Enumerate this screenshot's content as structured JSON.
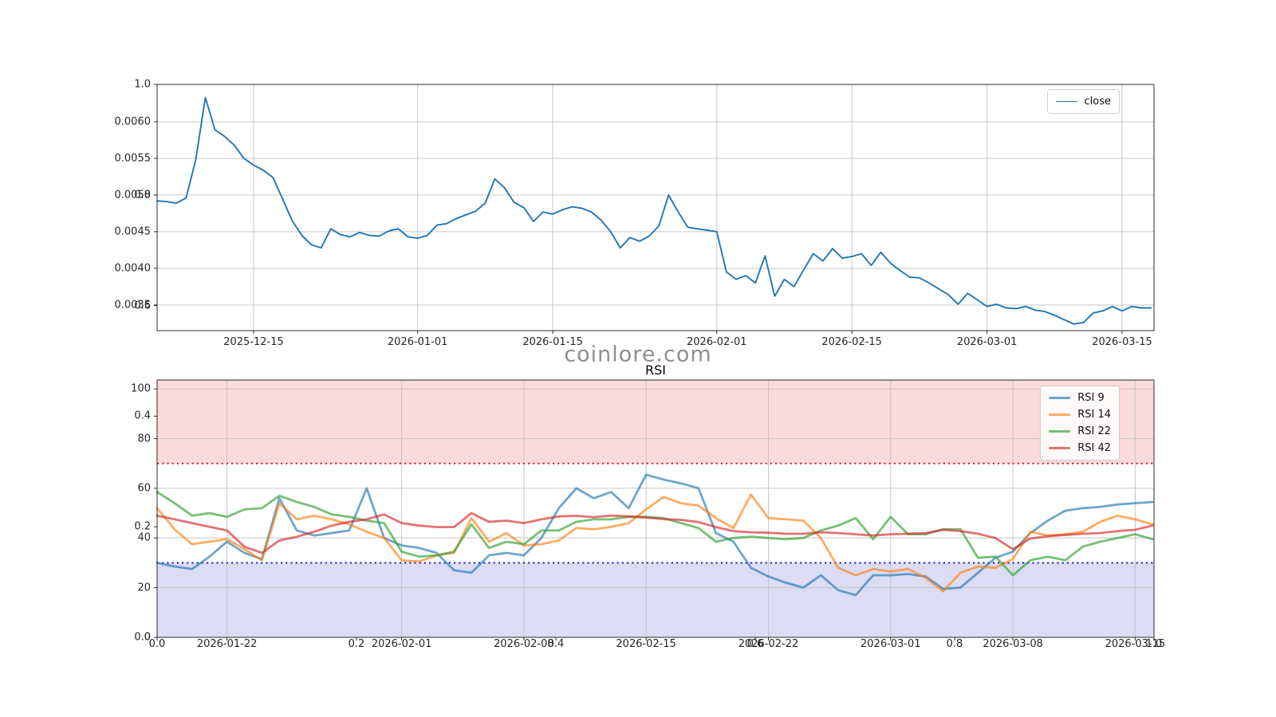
{
  "watermark": "coinlore.com",
  "phantom_axis": {
    "y_labels": [
      "0.0",
      "0.2",
      "0.4",
      "0.6",
      "0.8",
      "1.0"
    ],
    "x_labels": [
      "0.0",
      "0.2",
      "0.4",
      "0.6",
      "0.8",
      "1.0"
    ]
  },
  "chart_data": [
    {
      "type": "line",
      "title": "",
      "x_start_date": "2025-12-05",
      "x_end_date": "2026-03-17",
      "x_unit": "day",
      "grid": true,
      "legend_loc": "upper right",
      "ylim": [
        0.00315,
        0.00651
      ],
      "y_ticks": [
        {
          "v": 0.006,
          "label": "0.0060"
        },
        {
          "v": 0.0055,
          "label": "0.0055"
        },
        {
          "v": 0.005,
          "label": "0.0050"
        },
        {
          "v": 0.0045,
          "label": "0.0045"
        },
        {
          "v": 0.004,
          "label": "0.0040"
        },
        {
          "v": 0.0035,
          "label": "0.0035"
        }
      ],
      "x_ticks": [
        {
          "i": 10,
          "label": "2025-12-15"
        },
        {
          "i": 27,
          "label": "2026-01-01"
        },
        {
          "i": 41,
          "label": "2026-01-15"
        },
        {
          "i": 58,
          "label": "2026-02-01"
        },
        {
          "i": 72,
          "label": "2026-02-15"
        },
        {
          "i": 86,
          "label": "2026-03-01"
        },
        {
          "i": 100,
          "label": "2026-03-15"
        }
      ],
      "series": [
        {
          "name": "close",
          "color": "#1f77b4",
          "opacity": 1,
          "width": 1.9,
          "values": [
            0.00492,
            0.00491,
            0.00489,
            0.00496,
            0.00548,
            0.00633,
            0.00589,
            0.0058,
            0.00568,
            0.0055,
            0.00541,
            0.00534,
            0.00524,
            0.00495,
            0.00465,
            0.00445,
            0.00432,
            0.00428,
            0.00454,
            0.00446,
            0.00443,
            0.00449,
            0.00445,
            0.00444,
            0.00451,
            0.00454,
            0.00443,
            0.00441,
            0.00445,
            0.00459,
            0.00461,
            0.00468,
            0.00473,
            0.00478,
            0.00489,
            0.00522,
            0.0051,
            0.0049,
            0.00483,
            0.00464,
            0.00477,
            0.00474,
            0.0048,
            0.00484,
            0.00482,
            0.00477,
            0.00466,
            0.0045,
            0.00428,
            0.00442,
            0.00437,
            0.00444,
            0.00458,
            0.005,
            0.00477,
            0.00456,
            0.00454,
            0.00452,
            0.0045,
            0.00395,
            0.00385,
            0.0039,
            0.0038,
            0.00417,
            0.00362,
            0.00385,
            0.00375,
            0.00398,
            0.0042,
            0.0041,
            0.00427,
            0.00414,
            0.00416,
            0.0042,
            0.00404,
            0.00422,
            0.00407,
            0.00397,
            0.00388,
            0.00387,
            0.0038,
            0.00372,
            0.00364,
            0.00351,
            0.00366,
            0.00357,
            0.00348,
            0.00351,
            0.00346,
            0.00345,
            0.00348,
            0.00343,
            0.00341,
            0.00336,
            0.0033,
            0.00324,
            0.00326,
            0.00339,
            0.00342,
            0.00348,
            0.00342,
            0.00348,
            0.00346,
            0.00346
          ]
        }
      ]
    },
    {
      "type": "line",
      "title": "RSI",
      "x_start_date": "2026-01-18",
      "x_end_date": "2026-03-16",
      "x_unit": "day",
      "grid": true,
      "legend_loc": "upper right",
      "ylim": [
        0,
        103.6
      ],
      "y_ticks": [
        {
          "v": 100,
          "label": "100"
        },
        {
          "v": 80,
          "label": "80"
        },
        {
          "v": 60,
          "label": "60"
        },
        {
          "v": 40,
          "label": "40"
        },
        {
          "v": 20,
          "label": "20"
        },
        {
          "v": 0,
          "label": "0"
        }
      ],
      "x_ticks": [
        {
          "i": 4,
          "label": "2026-01-22"
        },
        {
          "i": 14,
          "label": "2026-02-01"
        },
        {
          "i": 21,
          "label": "2026-02-08"
        },
        {
          "i": 28,
          "label": "2026-02-15"
        },
        {
          "i": 35,
          "label": "2026-02-22"
        },
        {
          "i": 42,
          "label": "2026-03-01"
        },
        {
          "i": 49,
          "label": "2026-03-08"
        },
        {
          "i": 56,
          "label": "2026-03-15"
        }
      ],
      "bands": [
        {
          "from": 70,
          "to": 103.6,
          "color": "#fbdada",
          "meaning": "overbought"
        },
        {
          "from": 0,
          "to": 30,
          "color": "#dcdcf4",
          "meaning": "oversold"
        }
      ],
      "hlines": [
        {
          "v": 70,
          "color": "#d21f2a",
          "style": "dotted"
        },
        {
          "v": 30,
          "color": "#1d1dc8",
          "style": "dotted"
        }
      ],
      "series": [
        {
          "name": "RSI 9",
          "color": "#1f77b4",
          "opacity": 0.65,
          "width": 2.8,
          "values": [
            30,
            28.5,
            27.5,
            32.5,
            38.5,
            34,
            31.5,
            56,
            43,
            41,
            42,
            43,
            60,
            40,
            37,
            36,
            34,
            27,
            26,
            33,
            34,
            33,
            40,
            52,
            60,
            56,
            58.5,
            52,
            65.5,
            63.5,
            62,
            60,
            42,
            38.5,
            28,
            24.5,
            22,
            20,
            25,
            19,
            17,
            25,
            25,
            25.5,
            24.5,
            19.5,
            20,
            26,
            32,
            34.5,
            42,
            47,
            51,
            52,
            52.5,
            53.5,
            54,
            54.5
          ]
        },
        {
          "name": "RSI 14",
          "color": "#ff7f0e",
          "opacity": 0.65,
          "width": 2.8,
          "values": [
            52,
            43.5,
            37.5,
            38.5,
            39.5,
            35.5,
            31,
            54,
            47.5,
            49,
            47.5,
            45.5,
            42.5,
            40,
            31,
            30.5,
            33,
            34,
            48,
            38.5,
            42,
            37,
            37.5,
            39,
            44,
            43.5,
            44.5,
            46,
            51.5,
            56.5,
            54,
            53,
            48,
            44,
            57.5,
            48,
            47.5,
            47,
            40,
            28,
            25,
            27.5,
            26.5,
            27.5,
            24,
            18.5,
            26,
            28.5,
            28,
            31.5,
            42.5,
            41,
            41.5,
            42.5,
            46.5,
            49,
            47.5,
            45.5
          ]
        },
        {
          "name": "RSI 22",
          "color": "#2ca02c",
          "opacity": 0.65,
          "width": 2.8,
          "values": [
            58.5,
            54,
            49,
            50,
            48.5,
            51.5,
            52,
            57,
            54.5,
            52.5,
            49.5,
            48.5,
            47,
            46,
            34.5,
            32.5,
            33,
            34.5,
            45.5,
            36,
            38.5,
            37.5,
            43,
            43,
            46.5,
            47.5,
            47.5,
            48.5,
            48.5,
            48,
            46,
            44,
            38.5,
            40,
            40.5,
            40,
            39.5,
            40,
            43,
            45,
            48,
            39.5,
            48.5,
            41.5,
            41.5,
            43.5,
            43.5,
            32,
            32.5,
            25,
            31,
            32.5,
            31,
            36.5,
            38.5,
            40,
            41.5,
            39.5
          ]
        },
        {
          "name": "RSI 42",
          "color": "#d62728",
          "opacity": 0.65,
          "width": 2.8,
          "values": [
            49,
            47.5,
            46,
            44.5,
            43,
            36.5,
            34,
            39,
            40.5,
            42.5,
            45,
            46.5,
            47.5,
            49.5,
            46,
            45,
            44.4,
            44.4,
            50,
            46.5,
            47,
            46,
            47.5,
            48.7,
            48.9,
            48.4,
            49,
            48.7,
            48.2,
            47.6,
            47.3,
            46.4,
            44.4,
            42.8,
            42.3,
            42.1,
            41.7,
            41.7,
            42.3,
            42,
            41.5,
            41,
            41.5,
            41.7,
            42,
            43.3,
            42.8,
            41.7,
            40,
            35.5,
            39.8,
            40.7,
            41.2,
            41.7,
            42,
            42.8,
            43.3,
            45
          ]
        }
      ]
    }
  ]
}
